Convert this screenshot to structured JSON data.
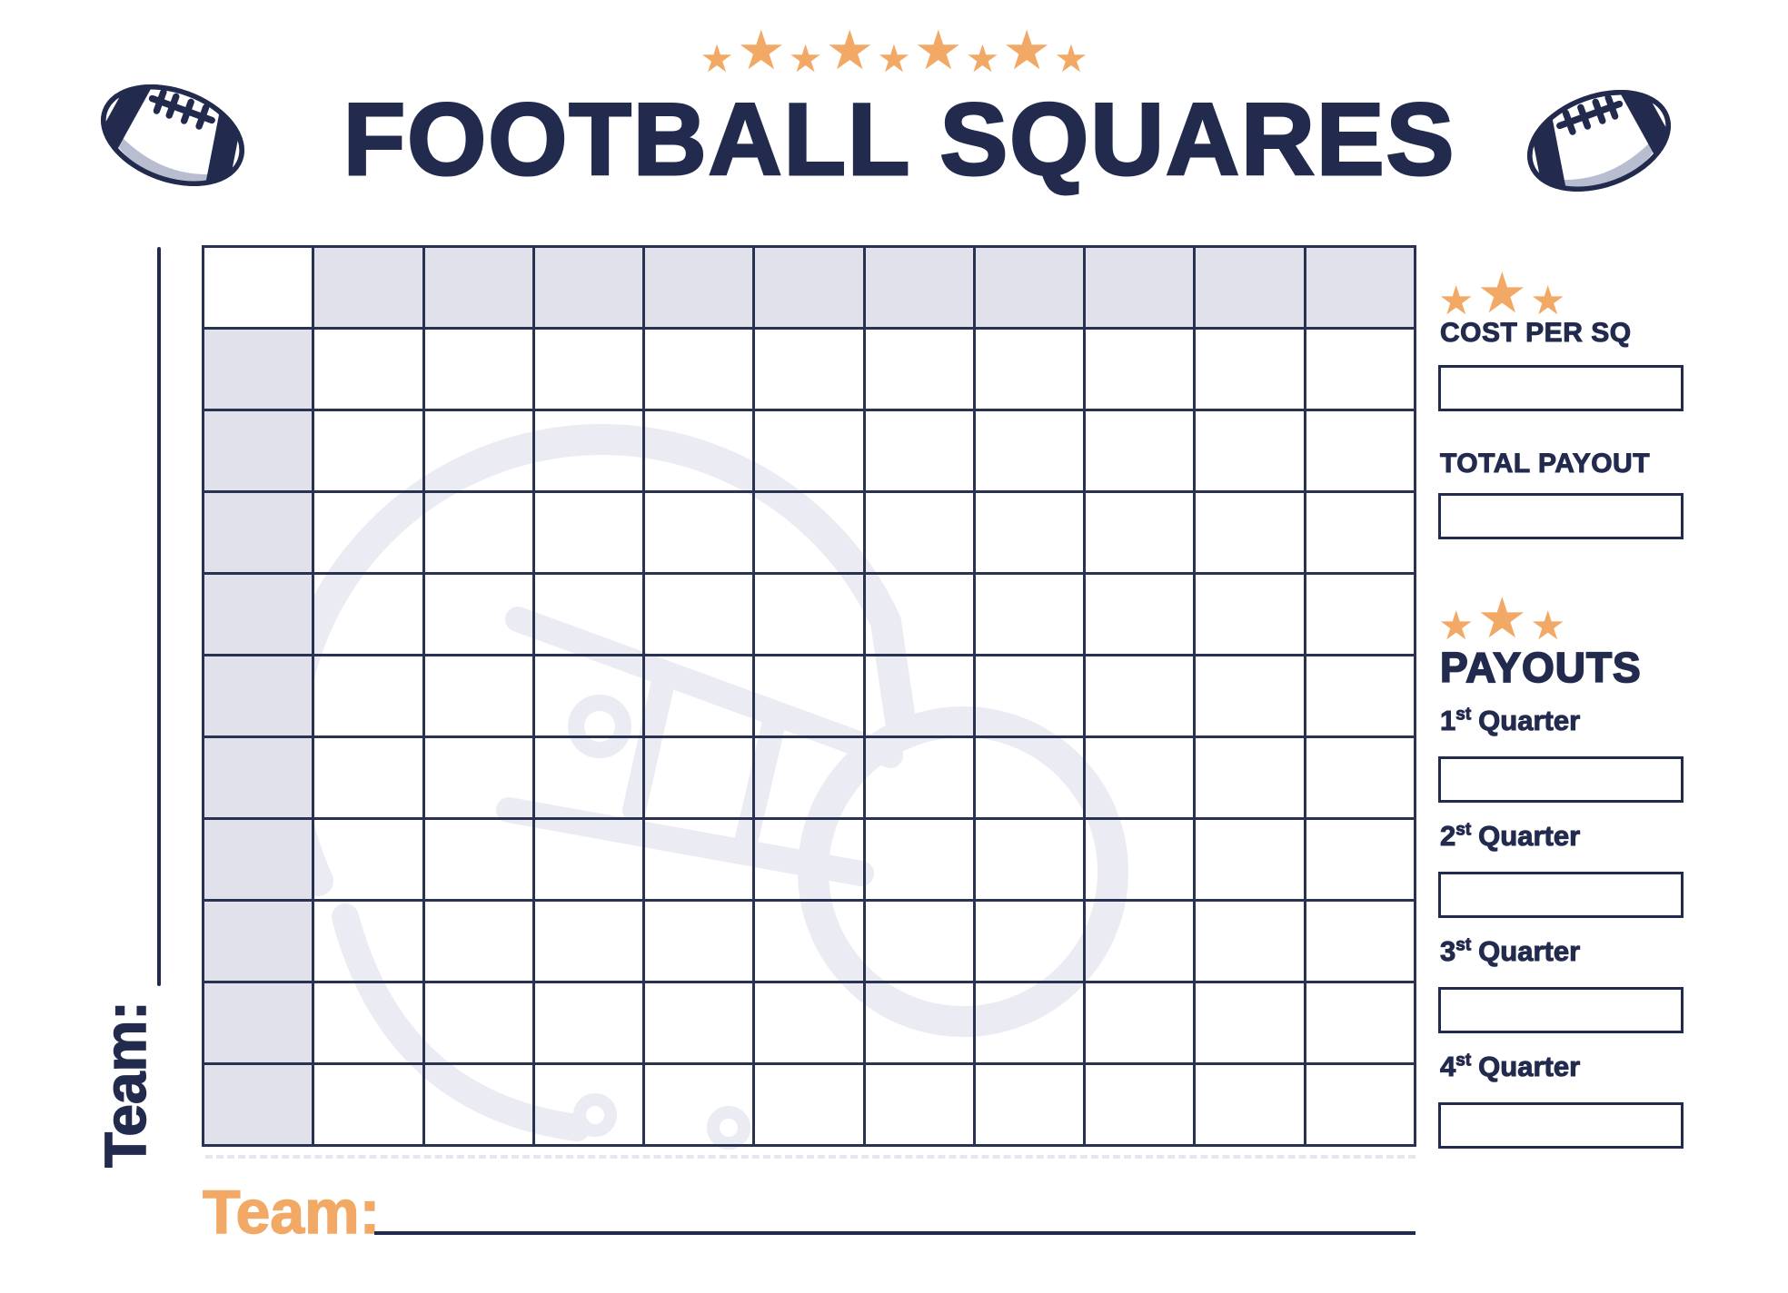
{
  "page": {
    "title": "FOOTBALL SQUARES"
  },
  "decor": {
    "top_star_count": 9,
    "sidebar_star_count": 3,
    "star_glyph": "★",
    "icons": [
      "football-icon",
      "star-icon",
      "helmet-watermark-icon"
    ]
  },
  "grid": {
    "rows": 11,
    "cols": 11,
    "note_header_row_shaded": true,
    "note_header_col_shaded": true
  },
  "left_axis": {
    "label": "Team:"
  },
  "bottom_axis": {
    "label": "Team:"
  },
  "sidebar": {
    "cost_label": "COST PER SQ",
    "cost_value": "",
    "total_label": "TOTAL PAYOUT",
    "total_value": "",
    "payouts_title": "PAYOUTS",
    "quarters": [
      {
        "num": "1",
        "suffix": "st",
        "word": "Quarter",
        "value": ""
      },
      {
        "num": "2",
        "suffix": "st",
        "word": "Quarter",
        "value": ""
      },
      {
        "num": "3",
        "suffix": "st",
        "word": "Quarter",
        "value": ""
      },
      {
        "num": "4",
        "suffix": "st",
        "word": "Quarter",
        "value": ""
      }
    ]
  },
  "colors": {
    "navy": "#222B4E",
    "grid_line": "#2A3252",
    "orange": "#F3A966",
    "shaded_cell": "#E0E1EB",
    "watermark": "#EAEBF3"
  }
}
